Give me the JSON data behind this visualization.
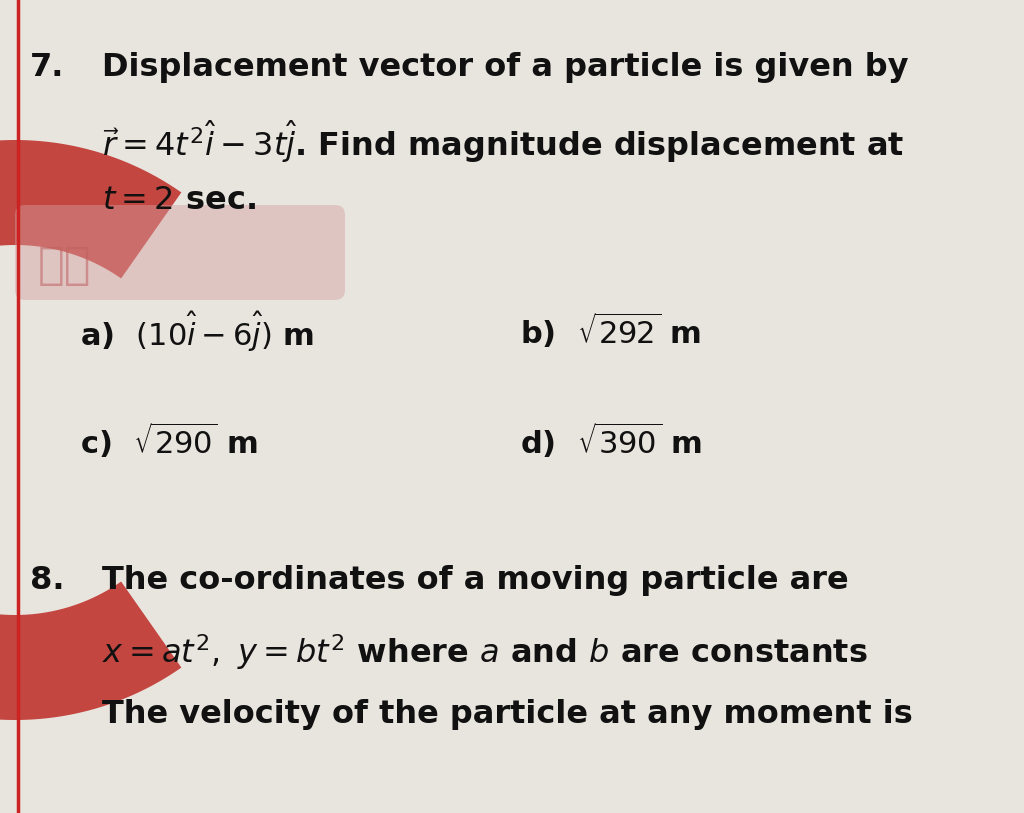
{
  "background_color": "#e8e4de",
  "text_color": "#111111",
  "red_line_color": "#cc2222",
  "c_shape_color": "#c0302a",
  "figsize": [
    10.24,
    8.13
  ],
  "dpi": 100,
  "q7_num": "7.",
  "q7_l1": "Displacement vector of a particle is given by",
  "q7_l3": "sec.",
  "q8_num": "8.",
  "q8_l1": "The co-ordinates of a moving particle are",
  "q8_l3": "The velocity of the particle at any moment is"
}
